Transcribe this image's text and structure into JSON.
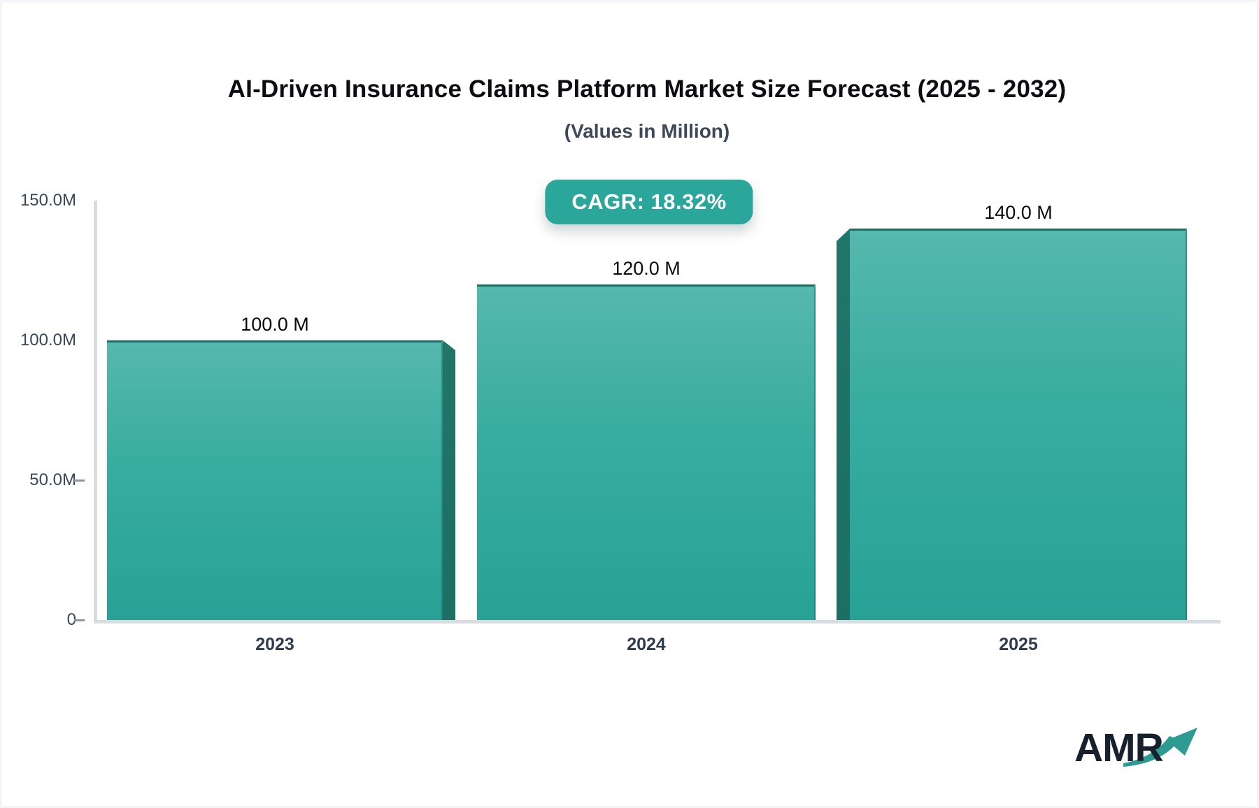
{
  "header": {
    "title": "AI-Driven Insurance Claims Platform Market Size Forecast (2025 - 2032)",
    "subtitle": "(Values in Million)"
  },
  "badge": {
    "label": "CAGR: 18.32%"
  },
  "logo": {
    "text": "AMR",
    "arrow_icon": "growth-arrow-icon"
  },
  "chart_data": {
    "type": "bar",
    "title": "AI-Driven Insurance Claims Platform Market Size Forecast (2025 - 2032)",
    "subtitle": "(Values in Million)",
    "unit": "Million",
    "cagr": "18.32%",
    "categories": [
      "2023",
      "2024",
      "2025"
    ],
    "values": [
      100.0,
      120.0,
      140.0
    ],
    "bar_value_labels": [
      "100.0 M",
      "120.0 M",
      "140.0 M"
    ],
    "ylim": [
      0,
      150
    ],
    "ytick_values": [
      150,
      100,
      50,
      0
    ],
    "ytick_labels": [
      "150.0M",
      "100.0M",
      "50.0M",
      "0"
    ],
    "grid": false,
    "legend_position": "none",
    "colors": {
      "bar_top": "#56b8ae",
      "bar_bottom": "#28a296",
      "bar_side": "#1e7268",
      "bar_edge": "#1b6f64",
      "axis": "#d8dbe0",
      "badge_bg": "#2aa69b",
      "value_label": "#0a0a0c",
      "tick_label": "#3b4757",
      "swoosh": "#2d9b92"
    }
  }
}
